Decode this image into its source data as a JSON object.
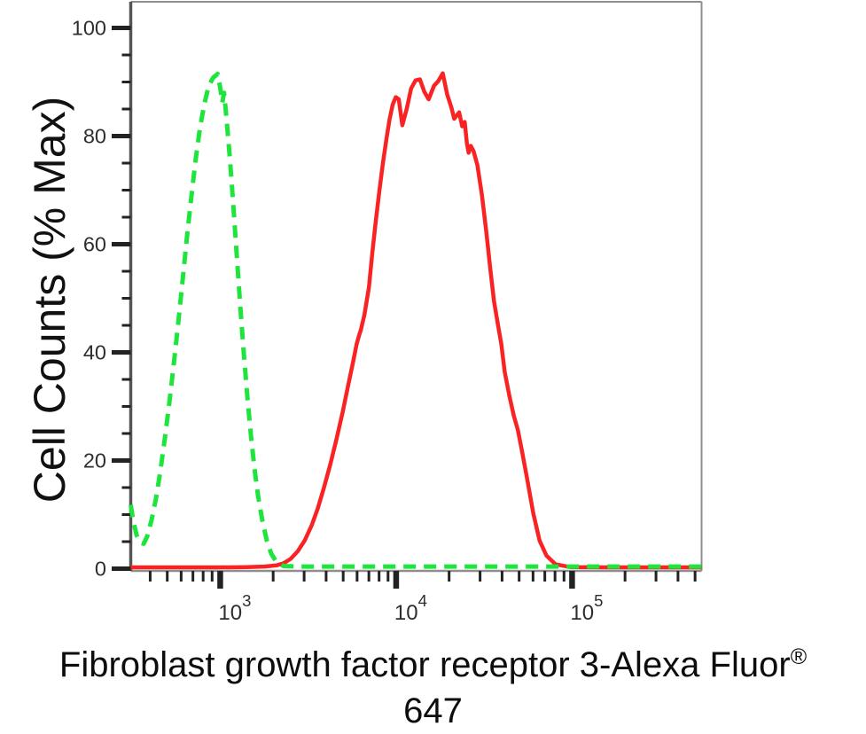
{
  "chart_data": {
    "type": "line",
    "subtype": "flow-cytometry-histogram-overlay",
    "title": "",
    "ylabel": "Cell Counts (% Max)",
    "xlabel": "Fibroblast growth factor receptor 3-Alexa Fluor® 647",
    "x_scale": "log10",
    "x_range_log": [
      2.4915,
      5.736
    ],
    "ylim": [
      0,
      105
    ],
    "grid": false,
    "legend": "none",
    "y_major_ticks": [
      0,
      20,
      40,
      60,
      80,
      100
    ],
    "y_minor_step": 5,
    "x_major_ticks": [
      {
        "log": 3,
        "mantissa": "10",
        "exponent": "3"
      },
      {
        "log": 4,
        "mantissa": "10",
        "exponent": "4"
      },
      {
        "log": 5,
        "mantissa": "10",
        "exponent": "5"
      }
    ],
    "x_minor_ticks_log": [
      2.602,
      2.699,
      2.778,
      2.845,
      2.903,
      2.954,
      3.301,
      3.477,
      3.602,
      3.699,
      3.778,
      3.845,
      3.903,
      3.954,
      4.301,
      4.477,
      4.602,
      4.699,
      4.778,
      4.845,
      4.903,
      4.954,
      5.301,
      5.477,
      5.602,
      5.699
    ],
    "colors": {
      "green_series": "#1ee53c",
      "red_series": "#fa2323",
      "axis_box": "#8e8e8e",
      "left_axis": "#555555",
      "tick": "#222222",
      "tick_label": "#2e2e2e"
    },
    "series": [
      {
        "id": "green-dashed",
        "color": "#1ee53c",
        "line_style": "dashed",
        "points_log_pct": [
          [
            2.4915,
            11.8
          ],
          [
            2.505,
            9.0
          ],
          [
            2.525,
            6.2
          ],
          [
            2.545,
            4.8
          ],
          [
            2.565,
            4.6
          ],
          [
            2.585,
            6.0
          ],
          [
            2.61,
            9.0
          ],
          [
            2.635,
            13.0
          ],
          [
            2.66,
            18.0
          ],
          [
            2.685,
            24.0
          ],
          [
            2.71,
            30.5
          ],
          [
            2.735,
            37.5
          ],
          [
            2.76,
            45.0
          ],
          [
            2.785,
            53.0
          ],
          [
            2.81,
            61.0
          ],
          [
            2.835,
            68.5
          ],
          [
            2.86,
            75.5
          ],
          [
            2.885,
            81.5
          ],
          [
            2.91,
            86.0
          ],
          [
            2.935,
            89.3
          ],
          [
            2.96,
            90.8
          ],
          [
            2.985,
            91.5
          ],
          [
            3.0,
            89.0
          ],
          [
            3.012,
            86.2
          ],
          [
            3.022,
            88.0
          ],
          [
            3.035,
            83.5
          ],
          [
            3.055,
            76.0
          ],
          [
            3.075,
            67.0
          ],
          [
            3.095,
            57.5
          ],
          [
            3.115,
            48.0
          ],
          [
            3.135,
            39.5
          ],
          [
            3.155,
            31.5
          ],
          [
            3.175,
            24.5
          ],
          [
            3.195,
            18.5
          ],
          [
            3.215,
            13.5
          ],
          [
            3.24,
            8.8
          ],
          [
            3.265,
            5.2
          ],
          [
            3.29,
            2.8
          ],
          [
            3.32,
            1.2
          ],
          [
            3.36,
            0.5
          ],
          [
            3.45,
            0.4
          ],
          [
            3.7,
            0.4
          ],
          [
            4.0,
            0.4
          ],
          [
            4.3,
            0.4
          ],
          [
            4.6,
            0.4
          ],
          [
            4.9,
            0.4
          ],
          [
            5.2,
            0.4
          ],
          [
            5.5,
            0.4
          ],
          [
            5.736,
            0.4
          ]
        ]
      },
      {
        "id": "red-solid",
        "color": "#fa2323",
        "line_style": "solid",
        "points_log_pct": [
          [
            2.4915,
            0.25
          ],
          [
            2.8,
            0.25
          ],
          [
            3.0,
            0.25
          ],
          [
            3.15,
            0.3
          ],
          [
            3.25,
            0.4
          ],
          [
            3.32,
            0.6
          ],
          [
            3.36,
            1.0
          ],
          [
            3.4,
            1.8
          ],
          [
            3.44,
            3.2
          ],
          [
            3.48,
            5.2
          ],
          [
            3.52,
            8.0
          ],
          [
            3.555,
            11.2
          ],
          [
            3.59,
            15.0
          ],
          [
            3.625,
            19.2
          ],
          [
            3.66,
            23.8
          ],
          [
            3.695,
            28.8
          ],
          [
            3.725,
            33.5
          ],
          [
            3.755,
            38.2
          ],
          [
            3.775,
            41.5
          ],
          [
            3.79,
            43.2
          ],
          [
            3.8,
            44.2
          ],
          [
            3.82,
            47.0
          ],
          [
            3.845,
            52.0
          ],
          [
            3.865,
            58.5
          ],
          [
            3.885,
            64.5
          ],
          [
            3.905,
            70.0
          ],
          [
            3.925,
            75.0
          ],
          [
            3.945,
            79.5
          ],
          [
            3.962,
            83.0
          ],
          [
            3.98,
            85.8
          ],
          [
            3.998,
            87.2
          ],
          [
            4.015,
            86.8
          ],
          [
            4.035,
            82.0
          ],
          [
            4.06,
            85.0
          ],
          [
            4.085,
            88.8
          ],
          [
            4.11,
            90.3
          ],
          [
            4.135,
            90.5
          ],
          [
            4.16,
            88.2
          ],
          [
            4.185,
            86.8
          ],
          [
            4.215,
            89.3
          ],
          [
            4.24,
            90.2
          ],
          [
            4.265,
            91.6
          ],
          [
            4.29,
            87.7
          ],
          [
            4.315,
            85.2
          ],
          [
            4.33,
            83.2
          ],
          [
            4.358,
            84.4
          ],
          [
            4.375,
            81.8
          ],
          [
            4.39,
            82.6
          ],
          [
            4.402,
            78.7
          ],
          [
            4.412,
            76.9
          ],
          [
            4.424,
            78.2
          ],
          [
            4.44,
            77.2
          ],
          [
            4.462,
            74.6
          ],
          [
            4.487,
            69.2
          ],
          [
            4.512,
            62.5
          ],
          [
            4.535,
            55.5
          ],
          [
            4.556,
            49.5
          ],
          [
            4.578,
            45.3
          ],
          [
            4.598,
            41.5
          ],
          [
            4.617,
            36.4
          ],
          [
            4.643,
            32.0
          ],
          [
            4.668,
            28.4
          ],
          [
            4.692,
            25.6
          ],
          [
            4.714,
            22.0
          ],
          [
            4.744,
            16.7
          ],
          [
            4.78,
            10.2
          ],
          [
            4.815,
            5.2
          ],
          [
            4.855,
            2.4
          ],
          [
            4.906,
            0.8
          ],
          [
            4.99,
            0.3
          ],
          [
            5.2,
            0.25
          ],
          [
            5.45,
            0.25
          ],
          [
            5.736,
            0.25
          ]
        ]
      }
    ]
  },
  "caption": {
    "line1": "Fibroblast growth factor receptor 3-Alexa Fluor",
    "registered": "®",
    "line2": "647"
  }
}
